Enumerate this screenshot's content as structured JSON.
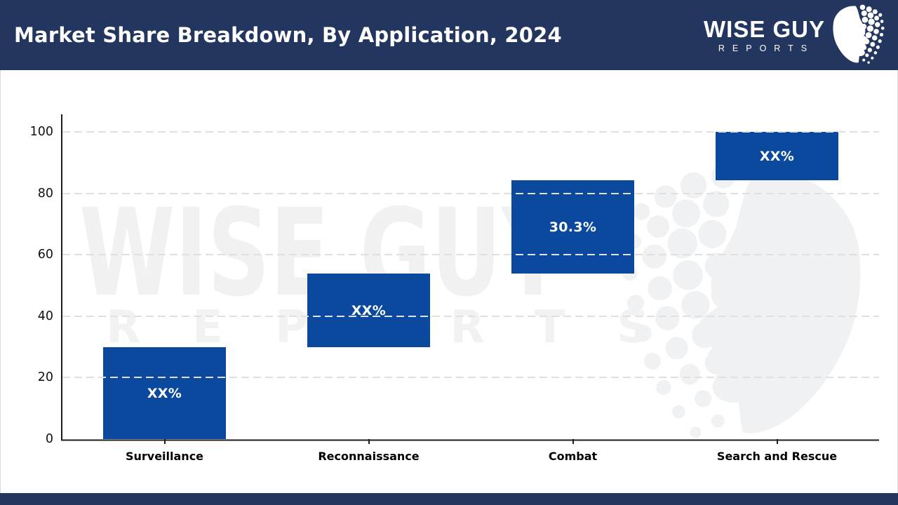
{
  "header": {
    "title": "Market Share Breakdown, By Application, 2024",
    "bg_color": "#23365f",
    "logo": {
      "line1": "WISE GUY",
      "line2": "REPORTS"
    }
  },
  "watermark": {
    "line1": "WISE GUY",
    "line2": "REPORTS"
  },
  "footer": {
    "bg_color": "#23365f"
  },
  "colors": {
    "brand_navy": "#23365f",
    "bar_blue": "#0a499e",
    "gridline": "#e0e0e0",
    "axis": "#1c1c1c",
    "watermark_gray": "#f1f1f2"
  },
  "chart_data": {
    "type": "bar",
    "subtype": "floating-waterfall",
    "title": "Market Share Breakdown, By Application, 2024",
    "xlabel": "",
    "ylabel": "",
    "categories": [
      "Surveillance",
      "Reconnaissance",
      "Combat",
      "Search and Rescue"
    ],
    "segments": [
      {
        "category": "Surveillance",
        "start": 0,
        "end": 29.9,
        "label": "XX%"
      },
      {
        "category": "Reconnaissance",
        "start": 29.9,
        "end": 53.9,
        "label": "XX%"
      },
      {
        "category": "Combat",
        "start": 53.9,
        "end": 84.2,
        "label": "30.3%"
      },
      {
        "category": "Search and Rescue",
        "start": 84.2,
        "end": 100,
        "label": "XX%"
      }
    ],
    "yticks": [
      0,
      20,
      40,
      60,
      80,
      100
    ],
    "ylim": [
      0,
      105.3
    ],
    "grid": "dashed-horizontal-over-bars",
    "legend": "none",
    "bar_color": "#0a499e",
    "bar_label_color": "#ffffff"
  }
}
